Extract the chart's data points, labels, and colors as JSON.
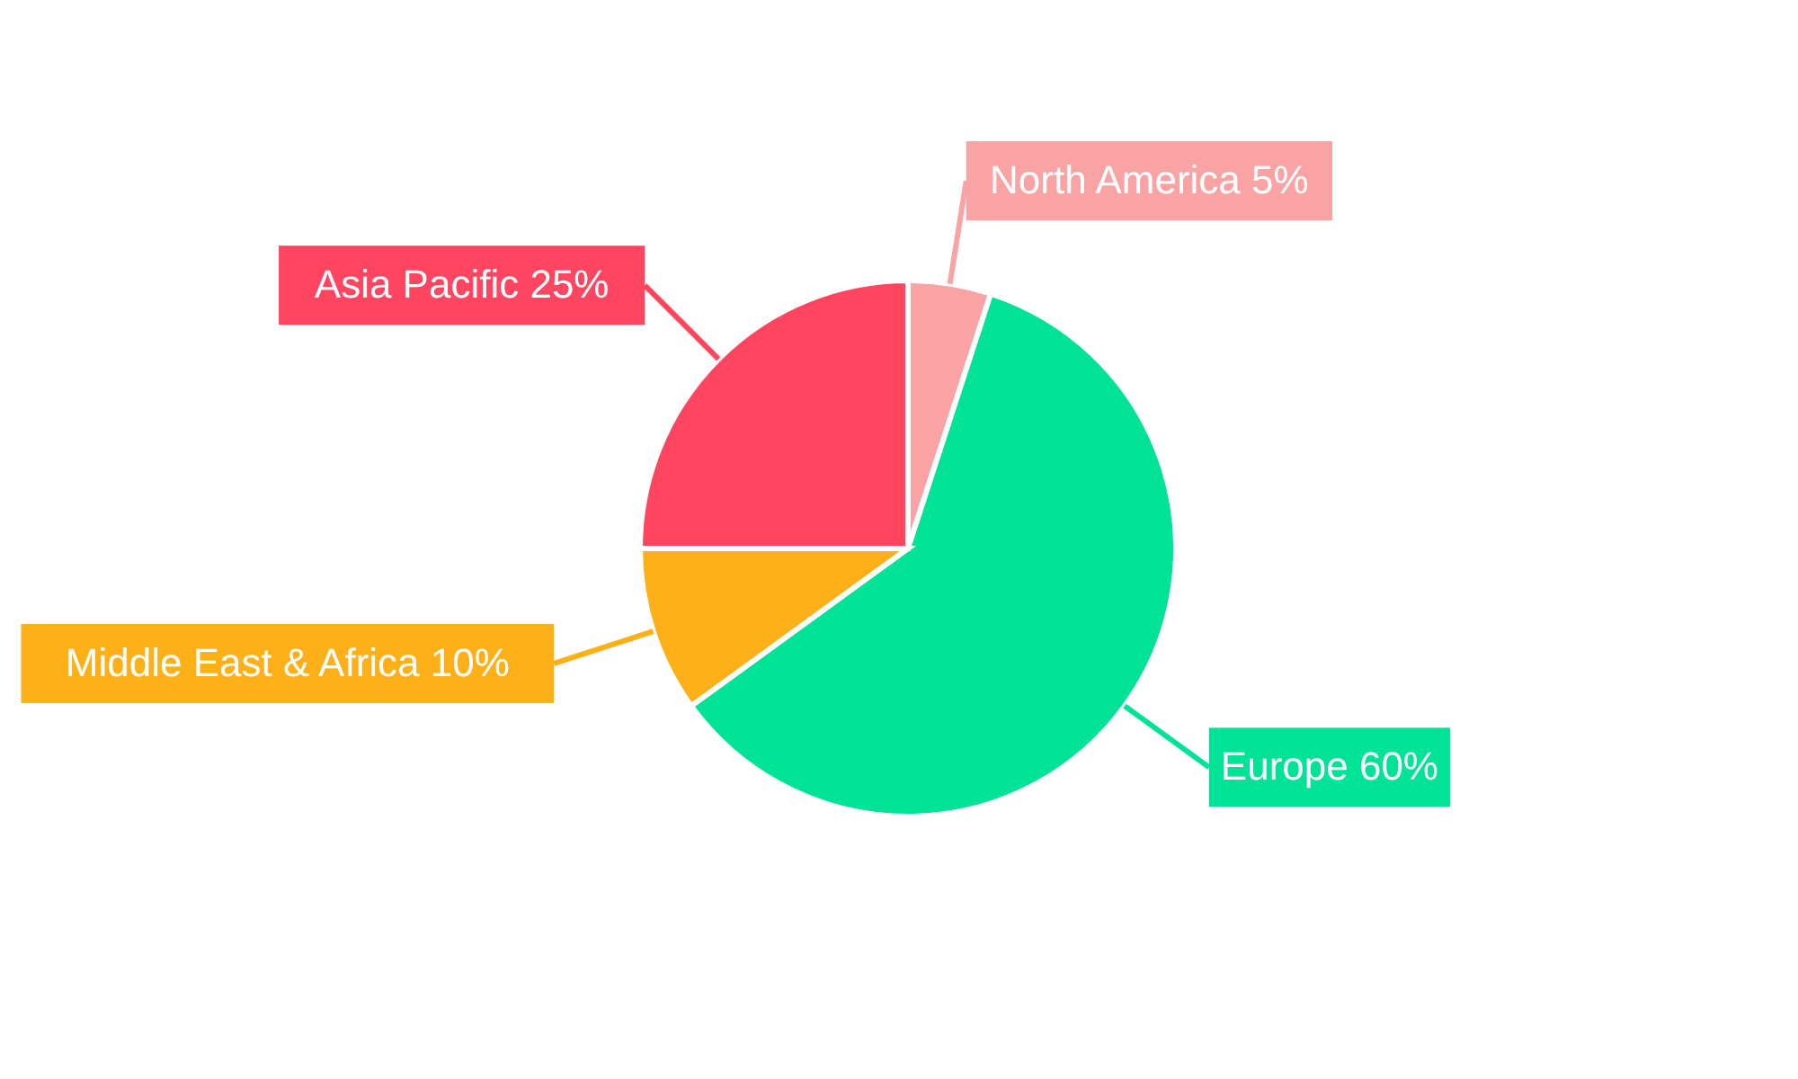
{
  "chart_data": {
    "type": "pie",
    "categories": [
      "North America",
      "Europe",
      "Middle East & Africa",
      "Asia Pacific"
    ],
    "values": [
      5,
      60,
      10,
      25
    ],
    "value_labels": [
      "5%",
      "60%",
      "10%",
      "25%"
    ],
    "colors": [
      "#f9a3a4",
      "#00e396",
      "#feb019",
      "#ff4560"
    ],
    "legend": false
  }
}
